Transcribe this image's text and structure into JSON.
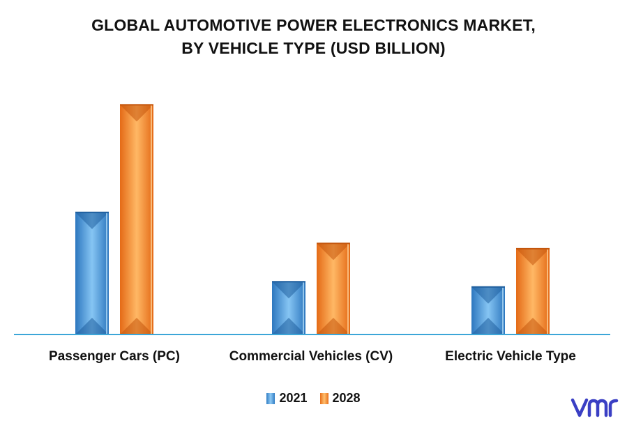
{
  "title_line1": "GLOBAL AUTOMOTIVE POWER ELECTRONICS MARKET,",
  "title_line2": "BY VEHICLE TYPE (USD BILLION)",
  "chart_data": {
    "type": "bar",
    "title": "GLOBAL AUTOMOTIVE POWER ELECTRONICS MARKET, BY VEHICLE TYPE (USD BILLION)",
    "categories": [
      "Passenger Cars (PC)",
      "Commercial Vehicles (CV)",
      "Electric Vehicle Type"
    ],
    "series": [
      {
        "name": "2021",
        "values": [
          18.5,
          8.0,
          7.2
        ],
        "color": "#4a9fe0"
      },
      {
        "name": "2028",
        "values": [
          34.8,
          13.8,
          13.0
        ],
        "color": "#f58a2a"
      }
    ],
    "ylim": [
      0,
      38
    ],
    "xlabel": "",
    "ylabel": "",
    "grid": false,
    "legend": "bottom-center"
  },
  "legend": [
    {
      "label": "2021",
      "color": "#4a9fe0"
    },
    {
      "label": "2028",
      "color": "#f58a2a"
    }
  ],
  "logo_text": "vmr",
  "colors": {
    "axis": "#3ca6d8",
    "logo": "#3a3fc4"
  }
}
